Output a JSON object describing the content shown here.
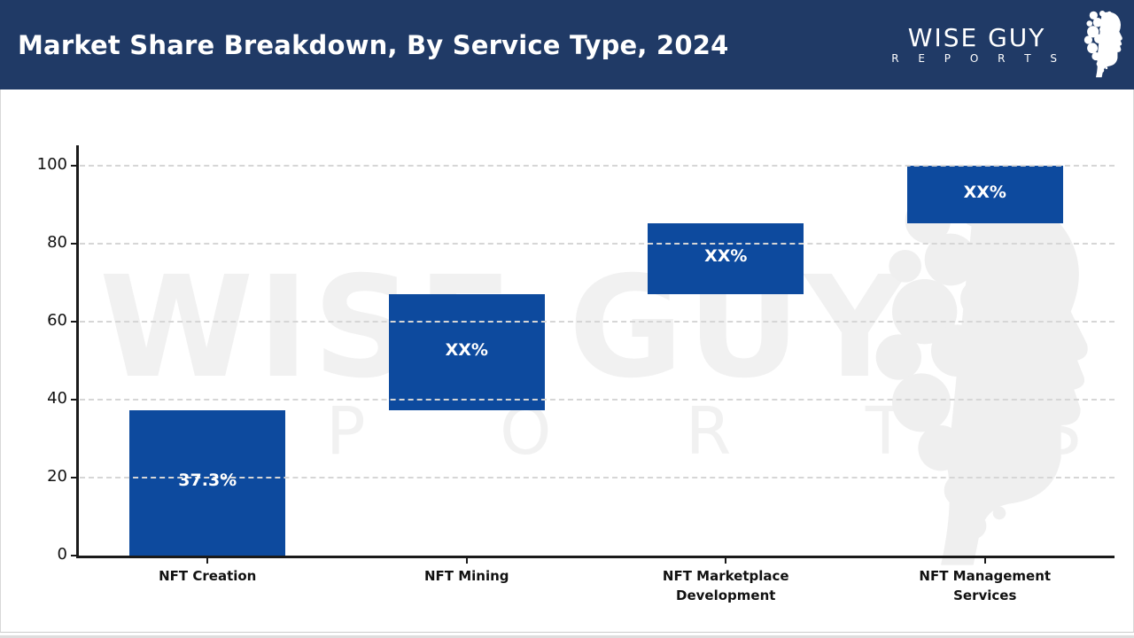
{
  "header": {
    "title": "Market Share Breakdown, By Service Type, 2024",
    "bg_color": "#203a66",
    "logo": {
      "name": "WISE GUY",
      "tagline": "R E P O R T S"
    }
  },
  "watermark": {
    "word": "WISE GUY",
    "letters": "P O R T S"
  },
  "chart_data": {
    "type": "bar",
    "subtype": "stacked-waterfall",
    "title": "Market Share Breakdown, By Service Type, 2024",
    "categories": [
      "NFT Creation",
      "NFT Mining",
      "NFT Marketplace Development",
      "NFT Management Services"
    ],
    "category_lines": [
      [
        "NFT Creation"
      ],
      [
        "NFT Mining"
      ],
      [
        "NFT Marketplace",
        "Development"
      ],
      [
        "NFT Management",
        "Services"
      ]
    ],
    "bars": [
      {
        "category": "NFT Creation",
        "start": 0,
        "end": 37.3,
        "label": "37.3%"
      },
      {
        "category": "NFT Mining",
        "start": 37.3,
        "end": 67.0,
        "label": "XX%"
      },
      {
        "category": "NFT Marketplace Development",
        "start": 67.0,
        "end": 85.2,
        "label": "XX%"
      },
      {
        "category": "NFT Management Services",
        "start": 85.2,
        "end": 100.0,
        "label": "XX%"
      }
    ],
    "ylim": [
      0,
      100
    ],
    "yticks": [
      0,
      20,
      40,
      60,
      80,
      100
    ],
    "ytick_labels": [
      "0",
      "20",
      "40",
      "60",
      "80",
      "100"
    ],
    "grid": true,
    "grid_style": "dashed",
    "legend": "none",
    "colors": {
      "bar": "#0d4a9e",
      "bar_label": "#ffffff",
      "grid": "#d6d6d6",
      "axis": "#1a1a1a",
      "tick_label": "#111111",
      "category_label": "#111111"
    }
  }
}
